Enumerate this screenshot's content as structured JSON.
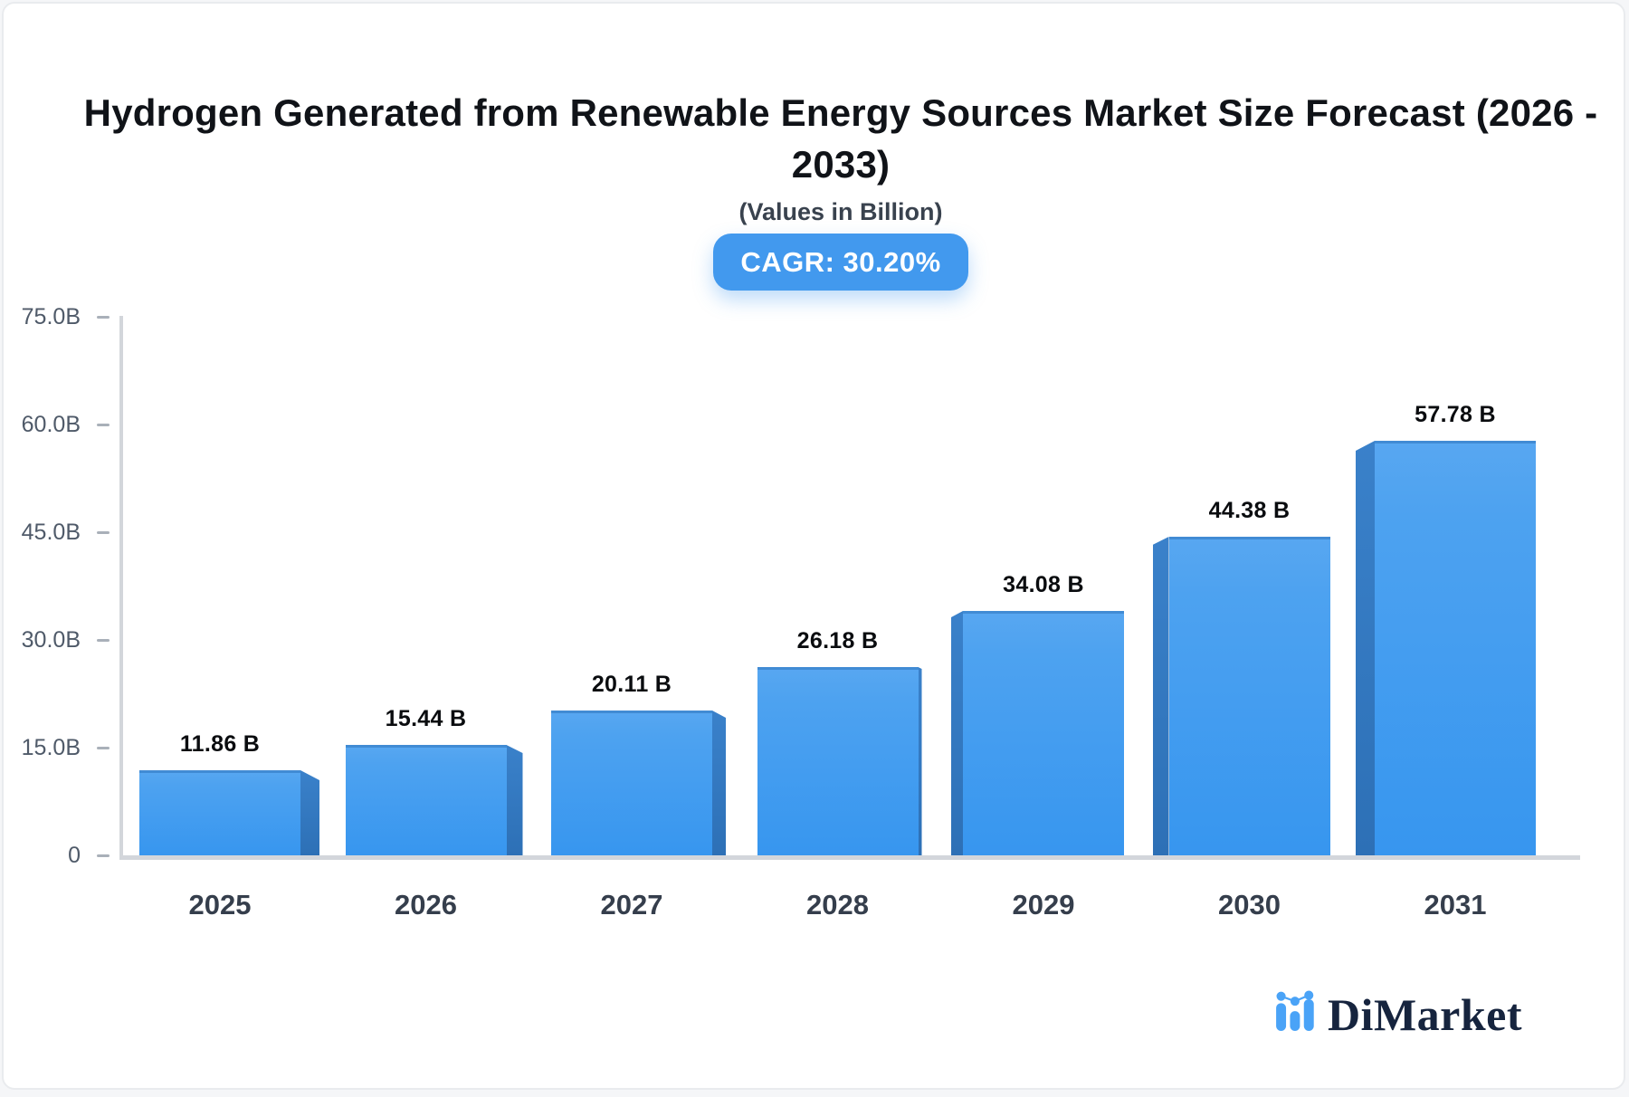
{
  "header": {
    "title": "Hydrogen Generated from Renewable Energy Sources Market Size Forecast (2026 - 2033)",
    "subtitle": "(Values in Billion)",
    "cagr_badge": "CAGR: 30.20%"
  },
  "chart_data": {
    "type": "bar",
    "title": "Hydrogen Generated from Renewable Energy Sources Market Size Forecast (2026 - 2033)",
    "subtitle": "(Values in Billion)",
    "categories": [
      "2025",
      "2026",
      "2027",
      "2028",
      "2029",
      "2030",
      "2031"
    ],
    "values": [
      11.86,
      15.44,
      20.11,
      26.18,
      34.08,
      44.38,
      57.78
    ],
    "bar_labels": [
      "11.86 B",
      "15.44 B",
      "20.11 B",
      "26.18 B",
      "34.08 B",
      "44.38 B",
      "57.78 B"
    ],
    "yticks": [
      {
        "label": "75.0B",
        "value": 75
      },
      {
        "label": "60.0B",
        "value": 60
      },
      {
        "label": "45.0B",
        "value": 45
      },
      {
        "label": "30.0B",
        "value": 30
      },
      {
        "label": "15.0B",
        "value": 15
      },
      {
        "label": "0",
        "value": 0
      }
    ],
    "ylim": [
      0,
      75
    ],
    "unit": "Billion",
    "grid": false,
    "legend": "none",
    "cagr": "30.20%"
  },
  "colors": {
    "badge_bg": "#4299ee",
    "bar_face_top": "#58a7f1",
    "bar_face_bottom": "#3796ef",
    "bar_side": "#2f74bc",
    "axis_line": "#d3d6db",
    "tick_mark": "#a9b0b9",
    "tick_label": "#4f5a69",
    "value_label": "#0a0c0f",
    "category_label": "#353e4c",
    "logo_icon_blue": "#4aa3f7",
    "logo_text_navy": "#16243e"
  },
  "branding": {
    "logo_text": "DiMarket"
  }
}
